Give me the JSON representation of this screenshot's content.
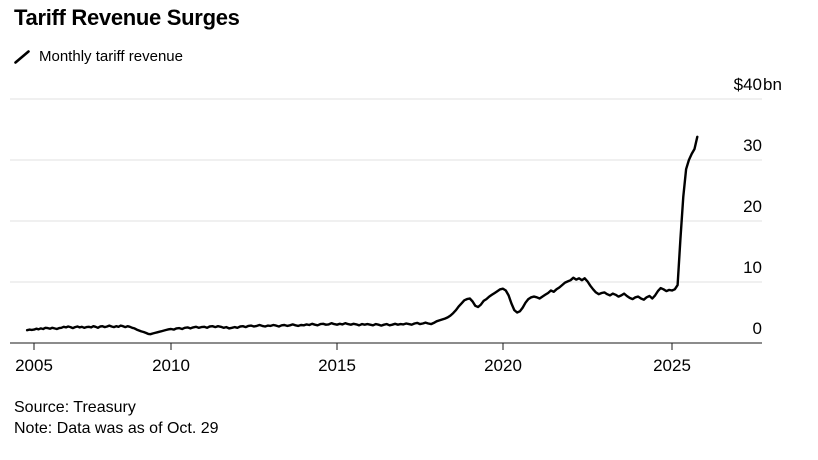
{
  "chart": {
    "title": "Tariff Revenue Surges",
    "legend_label": "Monthly tariff revenue",
    "footer": {
      "source": "Source: Treasury",
      "note": "Note: Data was as of Oct. 29"
    }
  },
  "chart_data": {
    "type": "line",
    "title": "Tariff Revenue Surges",
    "series_name": "Monthly tariff revenue",
    "unit": "$bn",
    "ylim": [
      0,
      40
    ],
    "grid": "horizontal",
    "legend_position": "top-left",
    "line_color": "#000000",
    "grid_color": "#e2e2e2",
    "axis_color": "#1a1a1a",
    "x_start_year": 2004.75,
    "x_step_years": 0.083333,
    "y_ticks": [
      {
        "value": 40,
        "label": "$40",
        "suffix": "bn"
      },
      {
        "value": 30,
        "label": "30",
        "suffix": ""
      },
      {
        "value": 20,
        "label": "20",
        "suffix": ""
      },
      {
        "value": 10,
        "label": "10",
        "suffix": ""
      },
      {
        "value": 0,
        "label": "0",
        "suffix": ""
      }
    ],
    "x_ticks": [
      {
        "year": 2005,
        "label": "2005"
      },
      {
        "year": 2010,
        "label": "2010"
      },
      {
        "year": 2015,
        "label": "2015"
      },
      {
        "year": 2020,
        "label": "2020"
      },
      {
        "year": 2025,
        "label": "2025"
      }
    ],
    "values": [
      2.1,
      2.2,
      2.15,
      2.2,
      2.35,
      2.25,
      2.4,
      2.3,
      2.5,
      2.45,
      2.35,
      2.5,
      2.4,
      2.3,
      2.45,
      2.5,
      2.65,
      2.55,
      2.7,
      2.6,
      2.45,
      2.6,
      2.7,
      2.55,
      2.65,
      2.5,
      2.6,
      2.65,
      2.55,
      2.75,
      2.65,
      2.5,
      2.7,
      2.75,
      2.6,
      2.7,
      2.85,
      2.7,
      2.6,
      2.75,
      2.65,
      2.85,
      2.75,
      2.6,
      2.75,
      2.65,
      2.5,
      2.4,
      2.2,
      2.05,
      1.9,
      1.8,
      1.65,
      1.5,
      1.45,
      1.55,
      1.65,
      1.75,
      1.85,
      1.95,
      2.05,
      2.15,
      2.25,
      2.3,
      2.2,
      2.4,
      2.45,
      2.3,
      2.5,
      2.55,
      2.4,
      2.55,
      2.65,
      2.5,
      2.6,
      2.65,
      2.5,
      2.7,
      2.75,
      2.6,
      2.75,
      2.65,
      2.5,
      2.6,
      2.4,
      2.5,
      2.6,
      2.5,
      2.7,
      2.75,
      2.6,
      2.8,
      2.85,
      2.7,
      2.8,
      2.95,
      2.8,
      2.7,
      2.85,
      2.8,
      2.95,
      2.85,
      2.7,
      2.9,
      2.95,
      2.8,
      2.9,
      3.05,
      2.9,
      2.8,
      2.95,
      2.9,
      3.05,
      2.95,
      3.15,
      3.0,
      2.9,
      3.1,
      3.15,
      3.0,
      3.05,
      3.25,
      3.1,
      3.0,
      3.15,
      3.05,
      3.25,
      3.1,
      3.0,
      3.15,
      3.05,
      2.9,
      3.1,
      3.0,
      3.1,
      3.0,
      2.9,
      3.1,
      3.0,
      2.85,
      3.0,
      3.1,
      2.9,
      3.0,
      3.15,
      3.0,
      3.1,
      3.05,
      3.2,
      3.1,
      3.0,
      3.2,
      3.3,
      3.1,
      3.2,
      3.35,
      3.2,
      3.1,
      3.3,
      3.55,
      3.7,
      3.85,
      4.0,
      4.2,
      4.5,
      4.9,
      5.4,
      6.0,
      6.5,
      7.0,
      7.2,
      7.3,
      6.8,
      6.1,
      5.9,
      6.3,
      6.9,
      7.2,
      7.6,
      7.9,
      8.2,
      8.5,
      8.8,
      8.9,
      8.6,
      7.8,
      6.5,
      5.4,
      5.0,
      5.2,
      5.8,
      6.6,
      7.2,
      7.5,
      7.6,
      7.5,
      7.3,
      7.6,
      7.9,
      8.2,
      8.6,
      8.4,
      8.8,
      9.1,
      9.5,
      9.9,
      10.1,
      10.3,
      10.7,
      10.4,
      10.6,
      10.3,
      10.6,
      10.1,
      9.4,
      8.8,
      8.3,
      8.0,
      8.2,
      8.3,
      8.0,
      7.8,
      8.1,
      7.9,
      7.6,
      7.8,
      8.1,
      7.7,
      7.4,
      7.2,
      7.5,
      7.6,
      7.3,
      7.1,
      7.5,
      7.7,
      7.3,
      7.8,
      8.5,
      9.0,
      8.8,
      8.5,
      8.7,
      8.6,
      8.8,
      9.5,
      17.0,
      24.0,
      28.5,
      30.0,
      31.0,
      31.8,
      33.8
    ]
  }
}
